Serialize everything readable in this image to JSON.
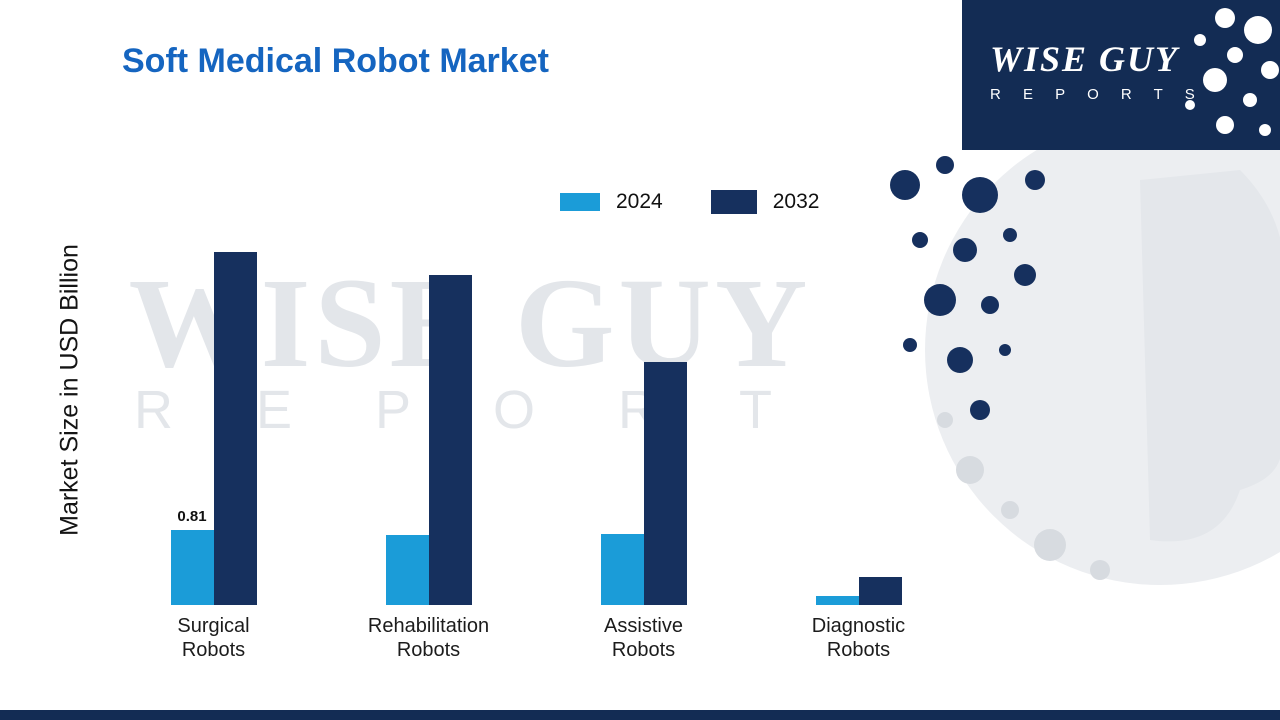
{
  "page": {
    "title": "Soft Medical Robot Market",
    "title_color": "#1565c0"
  },
  "logo": {
    "line1": "WISE GUY",
    "line2": "R E P O R T S",
    "bg_color": "#132c54"
  },
  "watermark": {
    "line1": "WISE GUY",
    "line2": "R E P O R T S"
  },
  "chart_data": {
    "type": "bar",
    "title": "Soft Medical Robot Market",
    "ylabel": "Market Size in USD Billion",
    "categories": [
      "Surgical Robots",
      "Rehabilitation Robots",
      "Assistive Robots",
      "Diagnostic Robots"
    ],
    "series": [
      {
        "name": "2024",
        "color": "#1b9cd8",
        "values": [
          0.81,
          0.75,
          0.76,
          0.1
        ]
      },
      {
        "name": "2032",
        "color": "#16305e",
        "values": [
          3.8,
          3.55,
          2.62,
          0.3
        ]
      }
    ],
    "value_labels": [
      [
        "0.81",
        ""
      ],
      [
        "",
        ""
      ],
      [
        "",
        ""
      ],
      [
        "",
        ""
      ]
    ],
    "ylim": [
      0,
      4.2
    ],
    "grid": false,
    "legend_position": "top"
  }
}
